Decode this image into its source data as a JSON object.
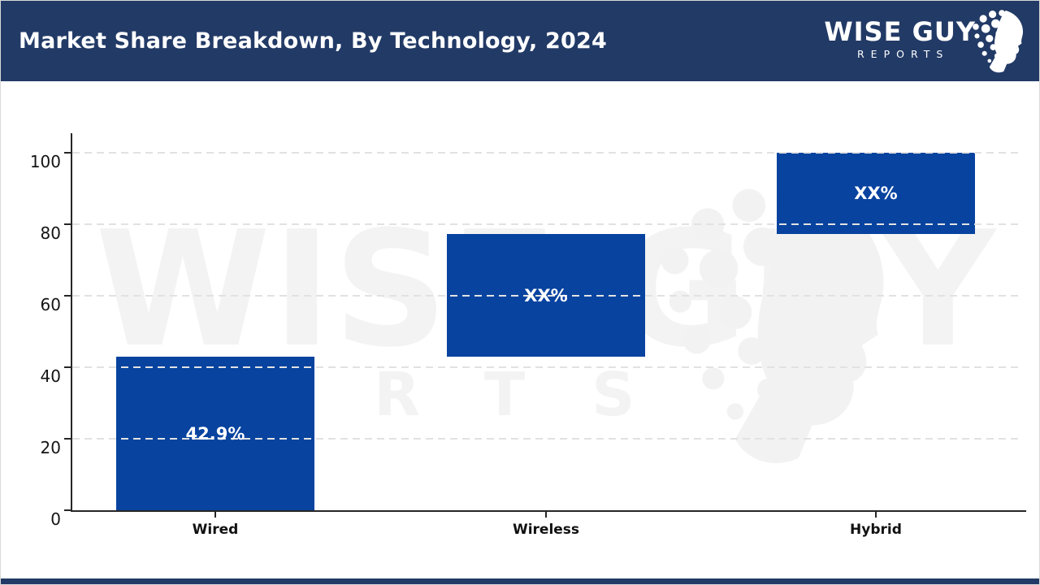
{
  "header": {
    "title": "Market Share Breakdown, By Technology, 2024",
    "logo": {
      "line1": "WISE GUY",
      "line2": "REPORTS"
    }
  },
  "watermark": {
    "line1": "WISE GUY",
    "line2": "PORTS"
  },
  "chart_data": {
    "type": "bar",
    "subtype": "floating-waterfall",
    "title": "Market Share Breakdown, By Technology, 2024",
    "categories": [
      "Wired",
      "Wireless",
      "Hybrid"
    ],
    "segments": [
      {
        "category": "Wired",
        "start": 0,
        "end": 42.9,
        "label": "42.9%"
      },
      {
        "category": "Wireless",
        "start": 42.9,
        "end": 77.3,
        "label": "XX%"
      },
      {
        "category": "Hybrid",
        "start": 77.3,
        "end": 100,
        "label": "XX%"
      }
    ],
    "xlabel": "",
    "ylabel": "",
    "ylim": [
      0,
      105.5
    ],
    "yticks": [
      0,
      20,
      40,
      60,
      80,
      100
    ],
    "grid": "horizontal-dashed",
    "legend": "none",
    "bar_color": "#07439f",
    "bar_label_color": "#ffffff"
  },
  "colors": {
    "header_bg": "#223a66",
    "footer_bg": "#223a66",
    "bar": "#07439f",
    "grid": "#e2e2e2",
    "axis": "#262626",
    "watermark": "#f3f3f3",
    "page_border": "#d9d9d9"
  }
}
